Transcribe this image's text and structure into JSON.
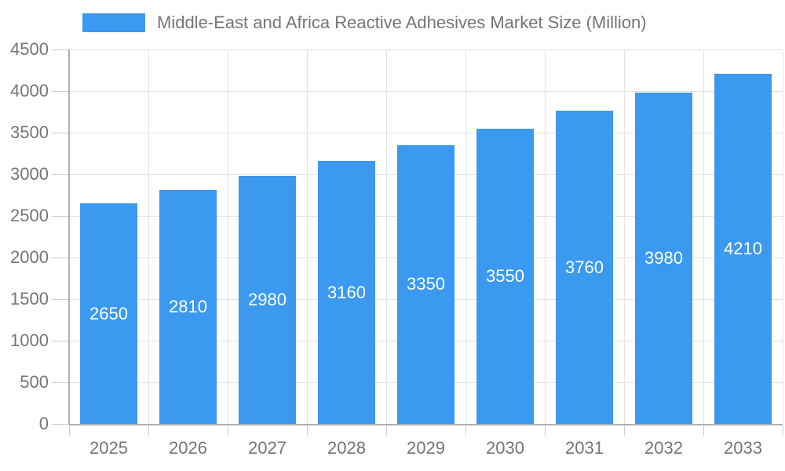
{
  "legend": {
    "label": "Middle-East and Africa Reactive Adhesives Market Size (Million)"
  },
  "colors": {
    "bar": "#3b99ef",
    "axis": "#b0b0b0",
    "grid": "#e3e3e3",
    "tick": "#cccccc",
    "axis_text": "#757575",
    "bar_label_text": "#ffffff",
    "background": "#ffffff"
  },
  "chart_data": {
    "type": "bar",
    "title": "Middle-East and Africa Reactive Adhesives Market Size (Million)",
    "categories": [
      "2025",
      "2026",
      "2027",
      "2028",
      "2029",
      "2030",
      "2031",
      "2032",
      "2033"
    ],
    "values": [
      2650,
      2810,
      2980,
      3160,
      3350,
      3550,
      3760,
      3980,
      4210
    ],
    "series": [
      {
        "name": "Middle-East and Africa Reactive Adhesives Market Size (Million)",
        "values": [
          2650,
          2810,
          2980,
          3160,
          3350,
          3550,
          3760,
          3980,
          4210
        ]
      }
    ],
    "xlabel": "",
    "ylabel": "",
    "ylim": [
      0,
      4500
    ],
    "yticks": [
      0,
      500,
      1000,
      1500,
      2000,
      2500,
      3000,
      3500,
      4000,
      4500
    ],
    "grid": true,
    "bar_labels_inside": true,
    "legend_position": "top"
  }
}
